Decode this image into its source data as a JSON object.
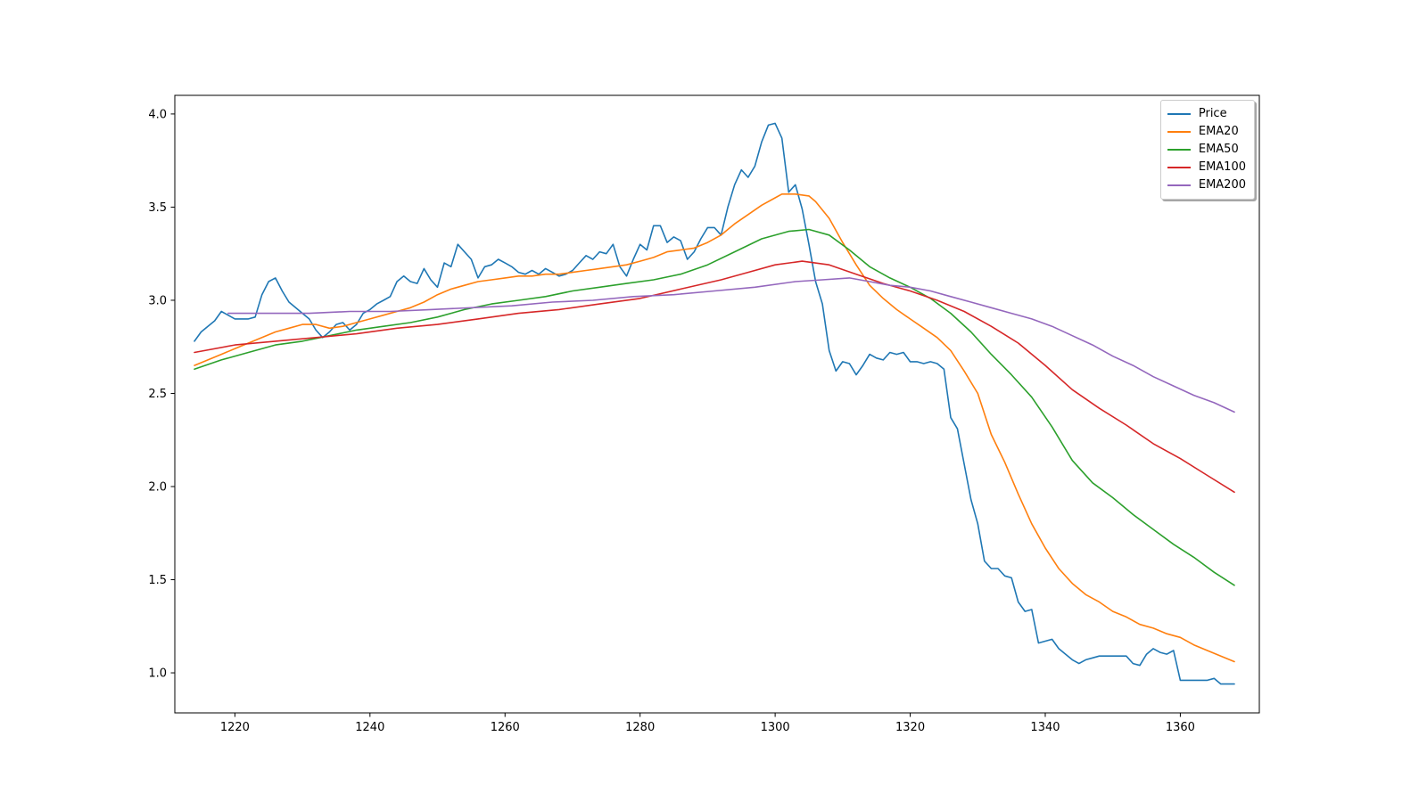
{
  "figure": {
    "background": "#ffffff",
    "plot_background": "#ffffff",
    "spine_color": "#000000"
  },
  "chart_data": {
    "type": "line",
    "title": "",
    "xlabel": "",
    "ylabel": "",
    "grid": false,
    "legend_position": "upper right",
    "xlim": [
      1211.1,
      1371.7
    ],
    "ylim": [
      0.785,
      4.1
    ],
    "x_ticks": [
      1220,
      1240,
      1260,
      1280,
      1300,
      1320,
      1340,
      1360
    ],
    "x_tick_labels": [
      "1220",
      "1240",
      "1260",
      "1280",
      "1300",
      "1320",
      "1340",
      "1360"
    ],
    "y_ticks": [
      1.0,
      1.5,
      2.0,
      2.5,
      3.0,
      3.5,
      4.0
    ],
    "y_tick_labels": [
      "1.0",
      "1.5",
      "2.0",
      "2.5",
      "3.0",
      "3.5",
      "4.0"
    ],
    "series": [
      {
        "name": "Price",
        "color": "#1f77b4",
        "x0": 1214,
        "y": [
          2.78,
          2.83,
          2.86,
          2.89,
          2.94,
          2.92,
          2.9,
          2.9,
          2.9,
          2.91,
          3.03,
          3.1,
          3.12,
          3.05,
          2.99,
          2.96,
          2.93,
          2.9,
          2.84,
          2.8,
          2.83,
          2.87,
          2.88,
          2.84,
          2.87,
          2.93,
          2.95,
          2.98,
          3.0,
          3.02,
          3.1,
          3.13,
          3.1,
          3.09,
          3.17,
          3.11,
          3.07,
          3.2,
          3.18,
          3.3,
          3.26,
          3.22,
          3.12,
          3.18,
          3.19,
          3.22,
          3.2,
          3.18,
          3.15,
          3.14,
          3.16,
          3.14,
          3.17,
          3.15,
          3.13,
          3.14,
          3.16,
          3.2,
          3.24,
          3.22,
          3.26,
          3.25,
          3.3,
          3.18,
          3.13,
          3.22,
          3.3,
          3.27,
          3.4,
          3.4,
          3.31,
          3.34,
          3.32,
          3.22,
          3.26,
          3.33,
          3.39,
          3.39,
          3.35,
          3.5,
          3.62,
          3.7,
          3.66,
          3.72,
          3.85,
          3.94,
          3.95,
          3.87,
          3.58,
          3.62,
          3.49,
          3.3,
          3.1,
          2.98,
          2.73,
          2.62,
          2.67,
          2.66,
          2.6,
          2.65,
          2.71,
          2.69,
          2.68,
          2.72,
          2.71,
          2.72,
          2.67,
          2.67,
          2.66,
          2.67,
          2.66,
          2.63,
          2.37,
          2.31,
          2.12,
          1.93,
          1.8,
          1.6,
          1.56,
          1.56,
          1.52,
          1.51,
          1.38,
          1.33,
          1.34,
          1.16,
          1.17,
          1.18,
          1.13,
          1.1,
          1.07,
          1.05,
          1.07,
          1.08,
          1.09,
          1.09,
          1.09,
          1.09,
          1.09,
          1.05,
          1.04,
          1.1,
          1.13,
          1.11,
          1.1,
          1.12,
          0.96,
          0.96,
          0.96,
          0.96,
          0.96,
          0.97,
          0.94,
          0.94,
          0.94
        ]
      },
      {
        "name": "EMA20",
        "color": "#ff7f0e",
        "x": [
          1214,
          1216,
          1218,
          1220,
          1222,
          1224,
          1226,
          1228,
          1230,
          1232,
          1234,
          1236,
          1238,
          1240,
          1242,
          1244,
          1246,
          1248,
          1250,
          1252,
          1254,
          1256,
          1258,
          1260,
          1262,
          1264,
          1266,
          1268,
          1270,
          1272,
          1274,
          1276,
          1278,
          1280,
          1282,
          1284,
          1286,
          1288,
          1290,
          1292,
          1294,
          1296,
          1298,
          1300,
          1301,
          1303,
          1305,
          1306,
          1308,
          1310,
          1312,
          1314,
          1316,
          1318,
          1320,
          1322,
          1324,
          1326,
          1328,
          1330,
          1332,
          1334,
          1336,
          1338,
          1340,
          1342,
          1344,
          1346,
          1348,
          1350,
          1352,
          1354,
          1356,
          1358,
          1360,
          1362,
          1364,
          1366,
          1368
        ],
        "y": [
          2.65,
          2.68,
          2.71,
          2.74,
          2.77,
          2.8,
          2.83,
          2.85,
          2.87,
          2.87,
          2.85,
          2.86,
          2.88,
          2.9,
          2.92,
          2.94,
          2.96,
          2.99,
          3.03,
          3.06,
          3.08,
          3.1,
          3.11,
          3.12,
          3.13,
          3.13,
          3.14,
          3.14,
          3.15,
          3.16,
          3.17,
          3.18,
          3.19,
          3.21,
          3.23,
          3.26,
          3.27,
          3.28,
          3.31,
          3.35,
          3.41,
          3.46,
          3.51,
          3.55,
          3.57,
          3.57,
          3.56,
          3.53,
          3.44,
          3.31,
          3.19,
          3.08,
          3.01,
          2.95,
          2.9,
          2.85,
          2.8,
          2.73,
          2.62,
          2.5,
          2.28,
          2.13,
          1.96,
          1.8,
          1.67,
          1.56,
          1.48,
          1.42,
          1.38,
          1.33,
          1.3,
          1.26,
          1.24,
          1.21,
          1.19,
          1.15,
          1.12,
          1.09,
          1.06
        ]
      },
      {
        "name": "EMA50",
        "color": "#2ca02c",
        "x": [
          1214,
          1218,
          1222,
          1226,
          1230,
          1234,
          1238,
          1242,
          1246,
          1250,
          1254,
          1258,
          1262,
          1266,
          1270,
          1274,
          1278,
          1282,
          1286,
          1290,
          1294,
          1298,
          1302,
          1305,
          1308,
          1311,
          1314,
          1317,
          1320,
          1323,
          1326,
          1329,
          1332,
          1335,
          1338,
          1341,
          1344,
          1347,
          1350,
          1353,
          1356,
          1359,
          1362,
          1365,
          1368
        ],
        "y": [
          2.63,
          2.68,
          2.72,
          2.76,
          2.78,
          2.81,
          2.84,
          2.86,
          2.88,
          2.91,
          2.95,
          2.98,
          3.0,
          3.02,
          3.05,
          3.07,
          3.09,
          3.11,
          3.14,
          3.19,
          3.26,
          3.33,
          3.37,
          3.38,
          3.35,
          3.27,
          3.18,
          3.12,
          3.07,
          3.01,
          2.93,
          2.83,
          2.71,
          2.6,
          2.48,
          2.32,
          2.14,
          2.02,
          1.94,
          1.85,
          1.77,
          1.69,
          1.62,
          1.54,
          1.47
        ]
      },
      {
        "name": "EMA100",
        "color": "#d62728",
        "x": [
          1214,
          1220,
          1226,
          1232,
          1238,
          1244,
          1250,
          1256,
          1262,
          1268,
          1274,
          1280,
          1286,
          1292,
          1296,
          1300,
          1304,
          1308,
          1312,
          1316,
          1320,
          1324,
          1328,
          1332,
          1336,
          1340,
          1344,
          1348,
          1352,
          1356,
          1360,
          1364,
          1368
        ],
        "y": [
          2.72,
          2.76,
          2.78,
          2.8,
          2.82,
          2.85,
          2.87,
          2.9,
          2.93,
          2.95,
          2.98,
          3.01,
          3.06,
          3.11,
          3.15,
          3.19,
          3.21,
          3.19,
          3.14,
          3.09,
          3.05,
          3.0,
          2.94,
          2.86,
          2.77,
          2.65,
          2.52,
          2.42,
          2.33,
          2.23,
          2.15,
          2.06,
          1.97
        ]
      },
      {
        "name": "EMA200",
        "color": "#9467bd",
        "x": [
          1219,
          1225,
          1231,
          1237,
          1243,
          1249,
          1255,
          1261,
          1267,
          1273,
          1279,
          1285,
          1291,
          1297,
          1303,
          1307,
          1311,
          1314,
          1317,
          1320,
          1323,
          1326,
          1329,
          1332,
          1335,
          1338,
          1341,
          1344,
          1347,
          1350,
          1353,
          1356,
          1359,
          1362,
          1365,
          1368
        ],
        "y": [
          2.93,
          2.93,
          2.93,
          2.94,
          2.94,
          2.95,
          2.96,
          2.97,
          2.99,
          3.0,
          3.02,
          3.03,
          3.05,
          3.07,
          3.1,
          3.11,
          3.12,
          3.1,
          3.08,
          3.07,
          3.05,
          3.02,
          2.99,
          2.96,
          2.93,
          2.9,
          2.86,
          2.81,
          2.76,
          2.7,
          2.65,
          2.59,
          2.54,
          2.49,
          2.45,
          2.4
        ]
      }
    ]
  },
  "legend": {
    "entries": [
      "Price",
      "EMA20",
      "EMA50",
      "EMA100",
      "EMA200"
    ]
  }
}
